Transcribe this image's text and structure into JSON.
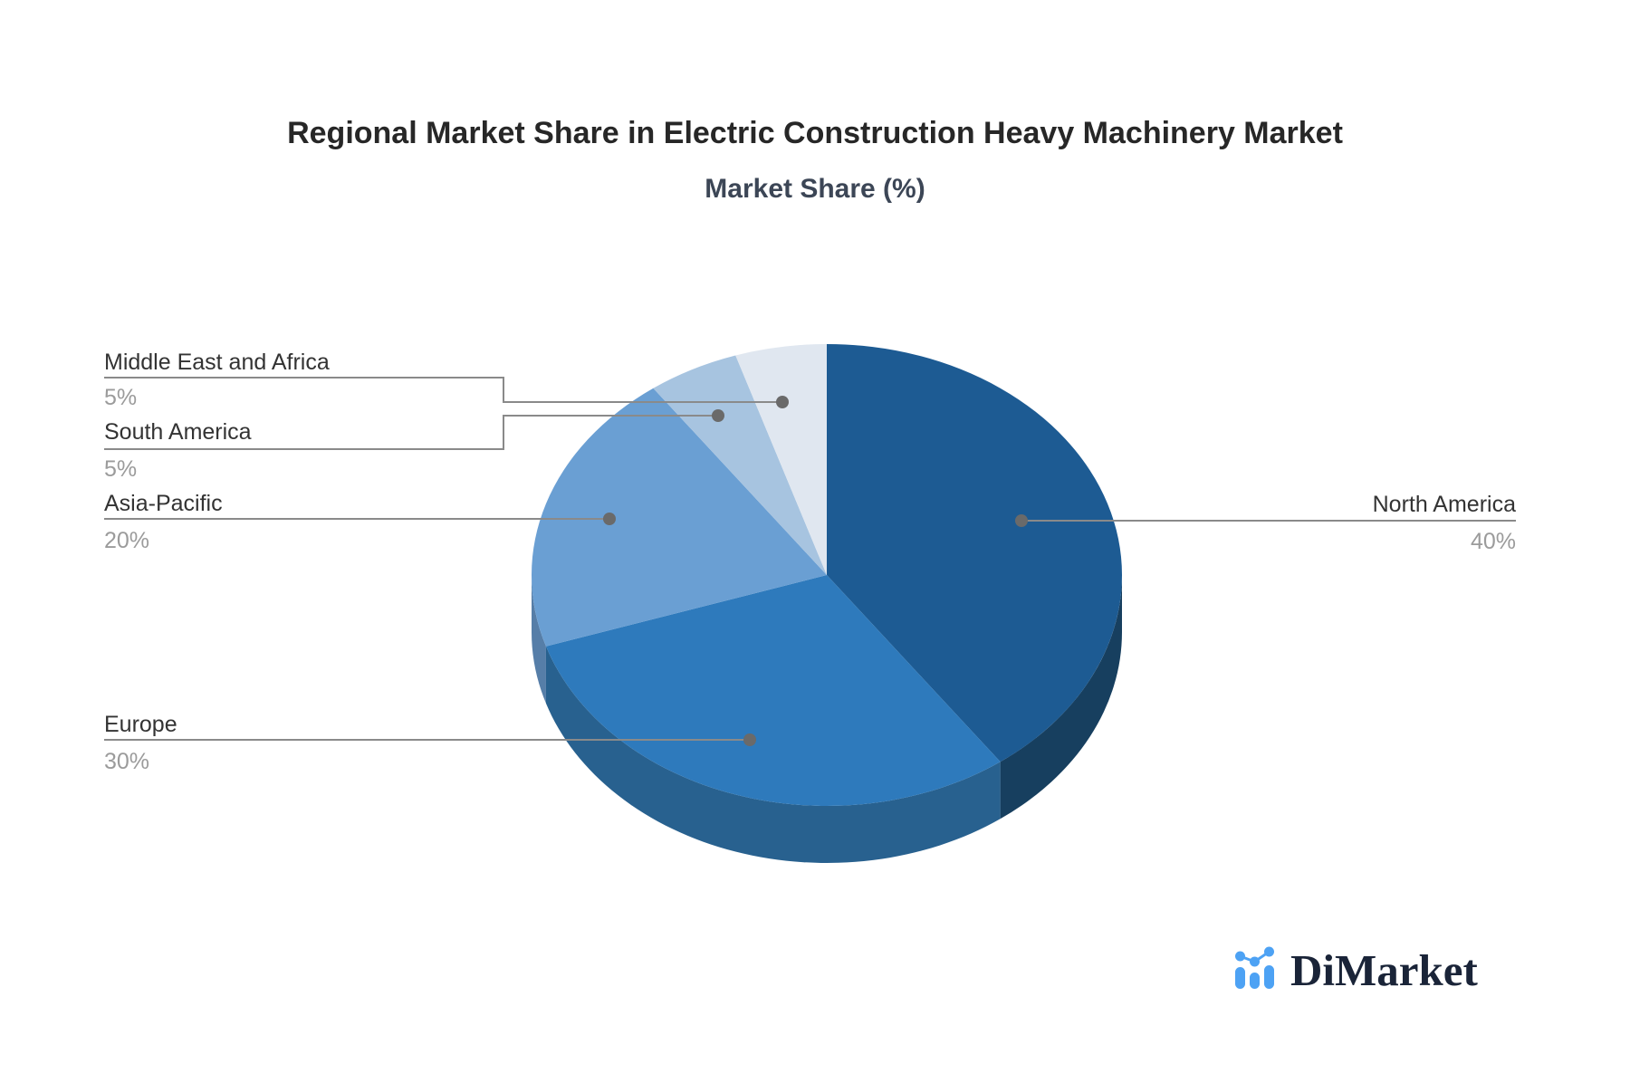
{
  "title": "Regional Market Share in Electric Construction Heavy Machinery Market",
  "subtitle": "Market Share (%)",
  "watermark": {
    "brand": "DiMarket",
    "icon": "bar-chart-logo-icon",
    "icon_color": "#4da2f4",
    "text_color": "#1a2438"
  },
  "chart_data": {
    "type": "pie",
    "style": "3d",
    "title": "Regional Market Share in Electric Construction Heavy Machinery Market",
    "subtitle": "Market Share (%)",
    "unit": "%",
    "start_angle_deg": 0,
    "direction": "clockwise",
    "legend_position": "none",
    "categories": [
      "North America",
      "Europe",
      "Asia-Pacific",
      "South America",
      "Middle East and Africa"
    ],
    "values": [
      40,
      30,
      20,
      5,
      5
    ],
    "slices": [
      {
        "label": "North America",
        "value": 40,
        "value_text": "40%",
        "color": "#1d5b93",
        "side_color": "#173f5f"
      },
      {
        "label": "Europe",
        "value": 30,
        "value_text": "30%",
        "color": "#2e7abc",
        "side_color": "#28618f"
      },
      {
        "label": "Asia-Pacific",
        "value": 20,
        "value_text": "20%",
        "color": "#6a9fd3",
        "side_color": "#567ea8"
      },
      {
        "label": "South America",
        "value": 5,
        "value_text": "5%",
        "color": "#a7c4e0",
        "side_color": "#8aa6c2"
      },
      {
        "label": "Middle East and Africa",
        "value": 5,
        "value_text": "5%",
        "color": "#e0e7f0",
        "side_color": "#bcc5d2"
      }
    ],
    "colors": {
      "background": "#ffffff",
      "callout_line": "#8a8a8a",
      "callout_dot": "#6a6a6a",
      "label_text": "#333333",
      "value_text": "#9b9b9b"
    }
  }
}
